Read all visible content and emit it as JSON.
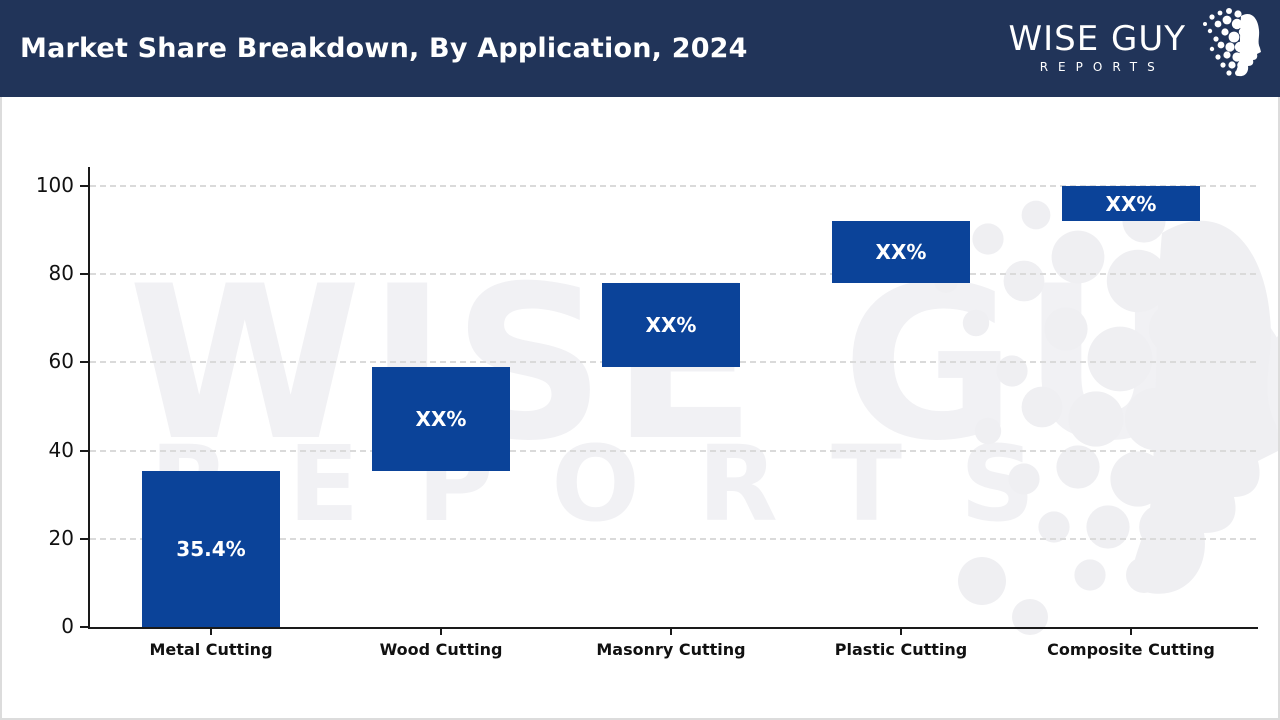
{
  "header": {
    "title": "Market Share Breakdown, By Application, 2024",
    "logo": {
      "line1": "WISE GUY",
      "line2": "REPORTS"
    }
  },
  "watermark": {
    "line1": "WISE GUY",
    "line2": "REPORTS"
  },
  "chart_data": {
    "type": "bar",
    "subtype": "waterfall",
    "title": "Market Share Breakdown, By Application, 2024",
    "xlabel": "",
    "ylabel": "",
    "ylim": [
      0,
      105
    ],
    "yticks": [
      0,
      20,
      40,
      60,
      80,
      100
    ],
    "grid": "dashed-horizontal",
    "legend": "none",
    "bar_color": "#0b4399",
    "label_color": "#ffffff",
    "categories": [
      "Metal Cutting",
      "Wood Cutting",
      "Masonry Cutting",
      "Plastic Cutting",
      "Composite Cutting"
    ],
    "segments": [
      {
        "category": "Metal Cutting",
        "start": 0,
        "end": 35.4,
        "label": "35.4%"
      },
      {
        "category": "Wood Cutting",
        "start": 35.4,
        "end": 59,
        "label": "XX%"
      },
      {
        "category": "Masonry Cutting",
        "start": 59,
        "end": 78,
        "label": "XX%"
      },
      {
        "category": "Plastic Cutting",
        "start": 78,
        "end": 92,
        "label": "XX%"
      },
      {
        "category": "Composite Cutting",
        "start": 92,
        "end": 100,
        "label": "XX%"
      }
    ]
  }
}
